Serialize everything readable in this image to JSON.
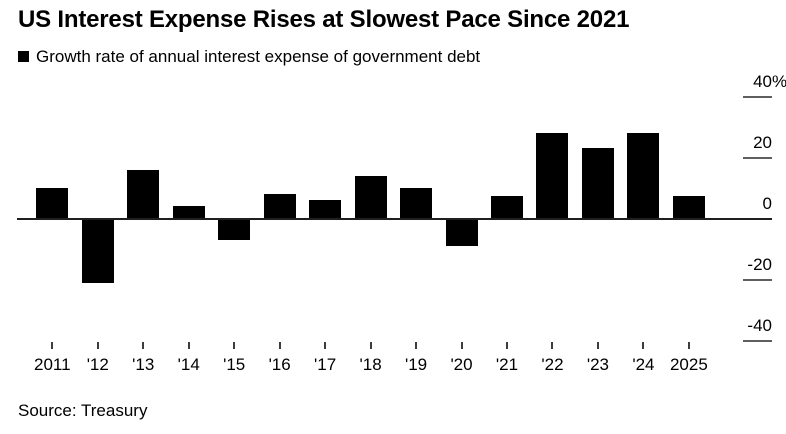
{
  "header": {
    "title": "US Interest Expense Rises at Slowest Pace Since 2021"
  },
  "legend": {
    "swatch_color": "#000000",
    "label": "Growth rate of annual interest expense of government debt"
  },
  "source": "Source: Treasury",
  "chart_data": {
    "type": "bar",
    "title": "US Interest Expense Rises at Slowest Pace Since 2021",
    "series_label": "Growth rate of annual interest expense of government debt",
    "unit": "%",
    "bar_color": "#000000",
    "categories": [
      "2011",
      "'12",
      "'13",
      "'14",
      "'15",
      "'16",
      "'17",
      "'18",
      "'19",
      "'20",
      "'21",
      "'22",
      "'23",
      "'24",
      "2025"
    ],
    "values": [
      10,
      -21,
      16,
      4,
      -7,
      8,
      6,
      14,
      10,
      -9,
      7.5,
      28,
      23,
      28,
      7.5
    ],
    "xlabel": "",
    "ylabel": "",
    "ylim": [
      -45,
      42
    ],
    "grid": false,
    "legend_position": "top-left",
    "y_axis": {
      "side": "right",
      "ticks": [
        {
          "value": 40,
          "label": "40%"
        },
        {
          "value": 20,
          "label": "20"
        },
        {
          "value": 0,
          "label": "0"
        },
        {
          "value": -20,
          "label": "-20"
        },
        {
          "value": -40,
          "label": "-40"
        }
      ]
    }
  }
}
